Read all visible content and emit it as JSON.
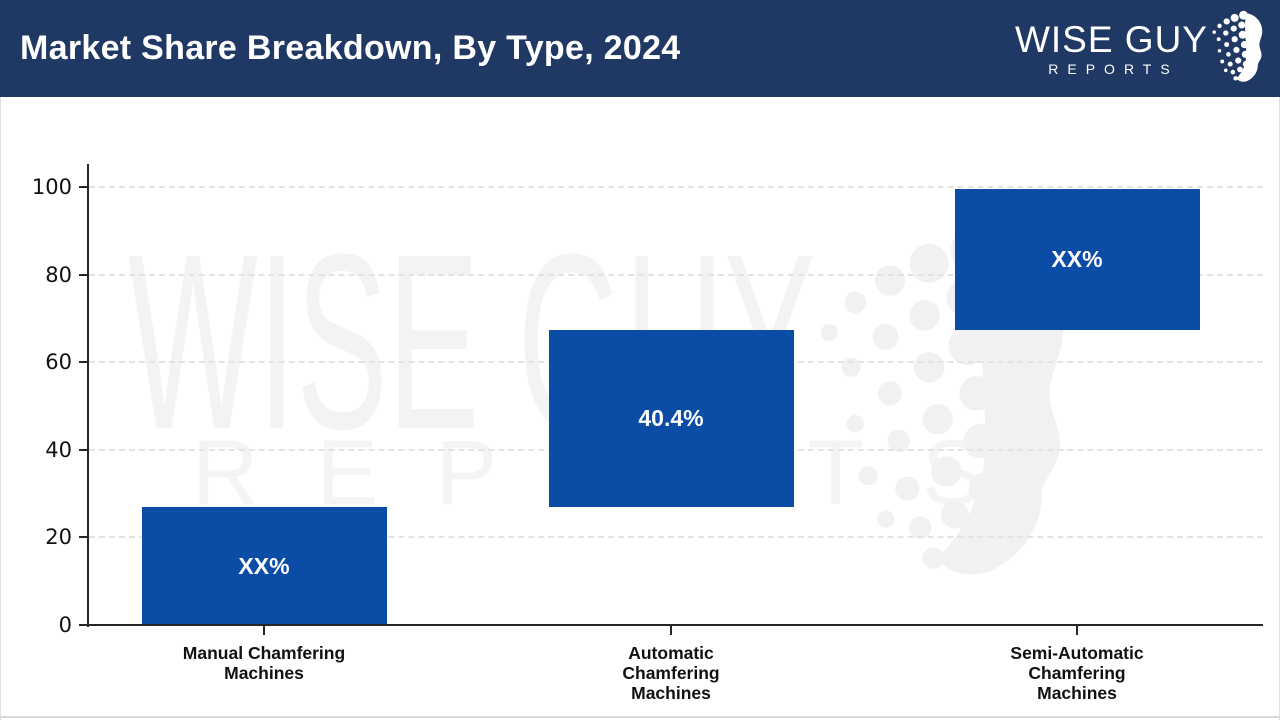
{
  "header": {
    "title": "Market Share Breakdown, By Type, 2024",
    "logo": {
      "wordmark": "WISE GUY",
      "subtitle": "REPORTS"
    }
  },
  "watermark": {
    "line1": "WISE GUY",
    "line2": "REPORTS"
  },
  "colors": {
    "header_bg": "#1f3864",
    "title_text": "#ffffff",
    "bar_fill": "#0b4da6",
    "bar_label": "#ffffff",
    "axis": "#262626",
    "tick_text": "#111111",
    "category_text": "#111111",
    "gridline": "#e3e3e3",
    "watermark_text": "#f3f3f6",
    "frame_border": "#d9d9d9"
  },
  "chart_data": {
    "type": "bar",
    "subtype": "waterfall-stacked-percent",
    "title": "Market Share Breakdown, By Type, 2024",
    "categories": [
      "Manual Chamfering Machines",
      "Automatic Chamfering Machines",
      "Semi-Automatic Chamfering Machines"
    ],
    "category_lines": [
      [
        "Manual Chamfering",
        "Machines"
      ],
      [
        "Automatic",
        "Chamfering",
        "Machines"
      ],
      [
        "Semi-Automatic",
        "Chamfering",
        "Machines"
      ]
    ],
    "segments": [
      {
        "category": "Manual Chamfering Machines",
        "start": 0,
        "end": 26.9,
        "value_label": "XX%"
      },
      {
        "category": "Automatic Chamfering Machines",
        "start": 26.9,
        "end": 67.3,
        "value_label": "40.4%"
      },
      {
        "category": "Semi-Automatic Chamfering Machines",
        "start": 67.3,
        "end": 99.6,
        "value_label": "XX%"
      }
    ],
    "xlabel": "",
    "ylabel": "",
    "ylim": [
      0,
      105
    ],
    "yticks": [
      0,
      20,
      40,
      60,
      80,
      100
    ],
    "grid": "horizontal-dashed",
    "legend": "none"
  }
}
